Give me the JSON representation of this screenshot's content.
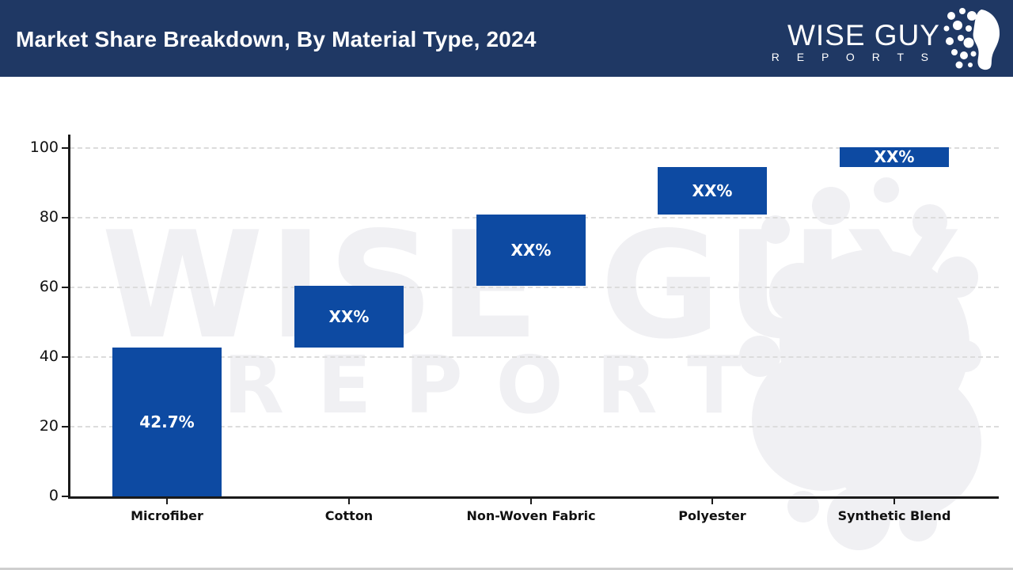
{
  "header": {
    "title": "Market Share Breakdown, By Material Type, 2024",
    "logo": {
      "name": "WISE GUY",
      "tagline": "R E P O R T S"
    }
  },
  "watermark": {
    "name": "WISE GUY",
    "tagline": "REPORTS"
  },
  "chart_data": {
    "type": "bar",
    "variant": "waterfall",
    "title": "Market Share Breakdown, By Material Type, 2024",
    "xlabel": "",
    "ylabel": "",
    "categories": [
      "Microfiber",
      "Cotton",
      "Non-Woven Fabric",
      "Polyester",
      "Synthetic Blend"
    ],
    "segments": [
      {
        "category": "Microfiber",
        "start": 0,
        "end": 42.7,
        "label": "42.7%"
      },
      {
        "category": "Cotton",
        "start": 42.7,
        "end": 60.5,
        "label": "XX%"
      },
      {
        "category": "Non-Woven Fabric",
        "start": 60.5,
        "end": 80.9,
        "label": "XX%"
      },
      {
        "category": "Polyester",
        "start": 80.9,
        "end": 94.5,
        "label": "XX%"
      },
      {
        "category": "Synthetic Blend",
        "start": 94.5,
        "end": 100.3,
        "label": "XX%"
      }
    ],
    "yticks": [
      0,
      20,
      40,
      60,
      80,
      100
    ],
    "ylim": [
      0,
      104
    ],
    "grid": "horizontal-dashed",
    "legend": "none",
    "colors": {
      "bar": "#0d4aa2",
      "bar_label": "#ffffff",
      "grid": "#dcdcdc",
      "axis": "#1a1a1a",
      "header_bg": "#1f3864",
      "watermark": "#f0f0f3"
    }
  }
}
